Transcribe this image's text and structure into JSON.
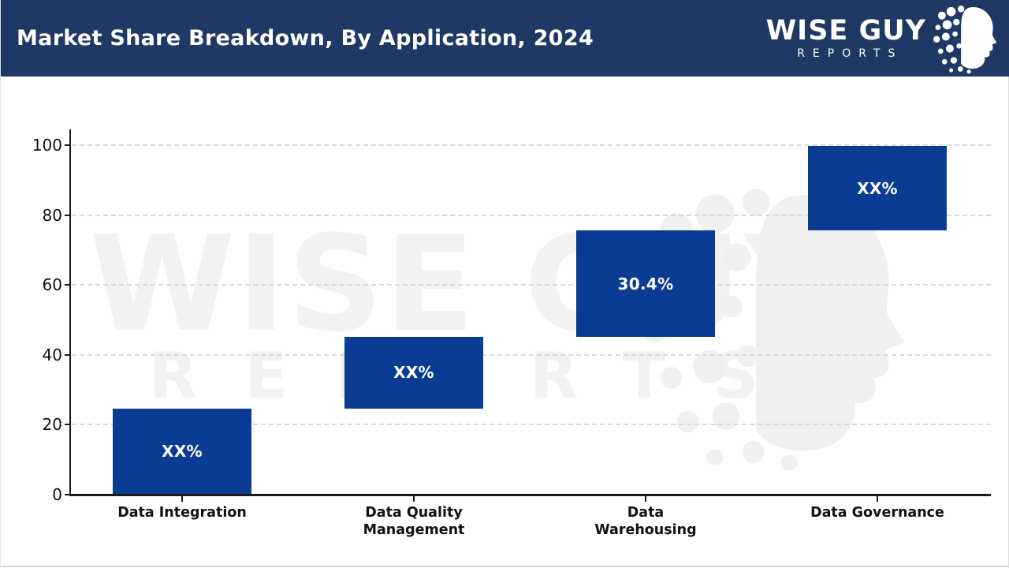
{
  "header": {
    "title": "Market Share Breakdown, By Application, 2024",
    "bg_color": "#1f3864",
    "brand": {
      "line1": "WISE GUY",
      "line2": "REPORTS"
    }
  },
  "watermark": {
    "line1": "WISE GUY",
    "line2": "REPORTS"
  },
  "chart_data": {
    "type": "bar",
    "subtype": "waterfall-stacked-segments",
    "title": "Market Share Breakdown, By Application, 2024",
    "categories": [
      "Data Integration",
      "Data Quality Management",
      "Data Warehousing",
      "Data Governance"
    ],
    "segments": [
      {
        "start": 0,
        "end": 24.7,
        "label": "XX%"
      },
      {
        "start": 24.7,
        "end": 45.1,
        "label": "XX%"
      },
      {
        "start": 45.1,
        "end": 75.5,
        "label": "30.4%"
      },
      {
        "start": 75.5,
        "end": 99.7,
        "label": "XX%"
      }
    ],
    "yticks": [
      0,
      20,
      40,
      60,
      80,
      100
    ],
    "ylim": [
      0,
      104.5
    ],
    "xlabel": "",
    "ylabel": "",
    "grid": "horizontal-dashed",
    "legend": "none",
    "bar_color": "#0b3c94",
    "grid_color": "#d9d9d9",
    "axis_color": "#1a1a1a"
  }
}
